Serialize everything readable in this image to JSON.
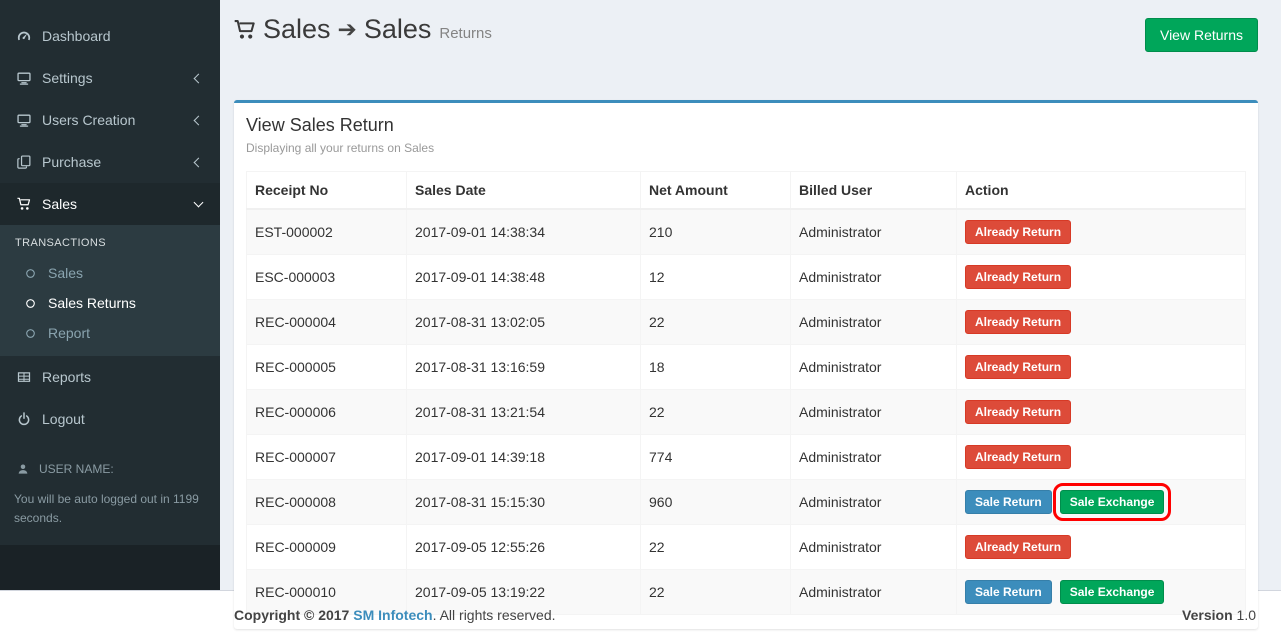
{
  "colors": {
    "topbar": "#00b0a8",
    "sidebar_bg": "#222d32",
    "sidebar_active_bg": "#1e282c",
    "submenu_bg": "#2c3b41",
    "content_bg": "#ecf0f5",
    "box_top_border": "#3c8dbc",
    "success": "#00a65a",
    "danger": "#dd4b39",
    "primary": "#3c8dbc",
    "annotation": "#ff0000"
  },
  "sidebar": {
    "menu": [
      {
        "label": "Dashboard",
        "icon": "dashboard-icon",
        "chevron": "",
        "active": false
      },
      {
        "label": "Settings",
        "icon": "monitor-icon",
        "chevron": "left",
        "active": false
      },
      {
        "label": "Users Creation",
        "icon": "monitor-icon",
        "chevron": "left",
        "active": false
      },
      {
        "label": "Purchase",
        "icon": "copy-icon",
        "chevron": "left",
        "active": false
      },
      {
        "label": "Sales",
        "icon": "cart-icon",
        "chevron": "down",
        "active": true
      }
    ],
    "section_header": "TRANSACTIONS",
    "submenu": [
      {
        "label": "Sales",
        "icon": "circle-icon",
        "active": false
      },
      {
        "label": "Sales Returns",
        "icon": "circle-icon",
        "active": true
      },
      {
        "label": "Report",
        "icon": "circle-icon",
        "active": false
      }
    ],
    "lower_menu": [
      {
        "label": "Reports",
        "icon": "table-icon",
        "chevron": "",
        "active": false
      },
      {
        "label": "Logout",
        "icon": "power-icon",
        "chevron": "",
        "active": false
      }
    ],
    "user_panel": {
      "label": "USER NAME:",
      "notice": "You will be auto logged out in 1199 seconds."
    }
  },
  "header": {
    "title": "Sales",
    "arrow": "➔",
    "subtitle_main": "Sales",
    "subtitle_small": "Returns",
    "action_button": "View Returns"
  },
  "box": {
    "title": "View Sales Return",
    "subtitle": "Displaying all your returns on Sales"
  },
  "table": {
    "columns": [
      "Receipt No",
      "Sales Date",
      "Net Amount",
      "Billed User",
      "Action"
    ],
    "rows": [
      {
        "receipt_no": "EST-000002",
        "sales_date": "2017-09-01 14:38:34",
        "net_amount": "210",
        "billed_user": "Administrator",
        "actions": [
          {
            "label": "Already Return",
            "style": "danger",
            "highlighted": false
          }
        ]
      },
      {
        "receipt_no": "ESC-000003",
        "sales_date": "2017-09-01 14:38:48",
        "net_amount": "12",
        "billed_user": "Administrator",
        "actions": [
          {
            "label": "Already Return",
            "style": "danger",
            "highlighted": false
          }
        ]
      },
      {
        "receipt_no": "REC-000004",
        "sales_date": "2017-08-31 13:02:05",
        "net_amount": "22",
        "billed_user": "Administrator",
        "actions": [
          {
            "label": "Already Return",
            "style": "danger",
            "highlighted": false
          }
        ]
      },
      {
        "receipt_no": "REC-000005",
        "sales_date": "2017-08-31 13:16:59",
        "net_amount": "18",
        "billed_user": "Administrator",
        "actions": [
          {
            "label": "Already Return",
            "style": "danger",
            "highlighted": false
          }
        ]
      },
      {
        "receipt_no": "REC-000006",
        "sales_date": "2017-08-31 13:21:54",
        "net_amount": "22",
        "billed_user": "Administrator",
        "actions": [
          {
            "label": "Already Return",
            "style": "danger",
            "highlighted": false
          }
        ]
      },
      {
        "receipt_no": "REC-000007",
        "sales_date": "2017-09-01 14:39:18",
        "net_amount": "774",
        "billed_user": "Administrator",
        "actions": [
          {
            "label": "Already Return",
            "style": "danger",
            "highlighted": false
          }
        ]
      },
      {
        "receipt_no": "REC-000008",
        "sales_date": "2017-08-31 15:15:30",
        "net_amount": "960",
        "billed_user": "Administrator",
        "actions": [
          {
            "label": "Sale Return",
            "style": "primary",
            "highlighted": false
          },
          {
            "label": "Sale Exchange",
            "style": "success",
            "highlighted": true
          }
        ]
      },
      {
        "receipt_no": "REC-000009",
        "sales_date": "2017-09-05 12:55:26",
        "net_amount": "22",
        "billed_user": "Administrator",
        "actions": [
          {
            "label": "Already Return",
            "style": "danger",
            "highlighted": false
          }
        ]
      },
      {
        "receipt_no": "REC-000010",
        "sales_date": "2017-09-05 13:19:22",
        "net_amount": "22",
        "billed_user": "Administrator",
        "actions": [
          {
            "label": "Sale Return",
            "style": "primary",
            "highlighted": false
          },
          {
            "label": "Sale Exchange",
            "style": "success",
            "highlighted": false
          }
        ]
      }
    ]
  },
  "footer": {
    "copyright_bold": "Copyright © 2017",
    "company": "SM Infotech",
    "rights": ". All rights reserved.",
    "version_label": "Version",
    "version_value": "1.0"
  }
}
